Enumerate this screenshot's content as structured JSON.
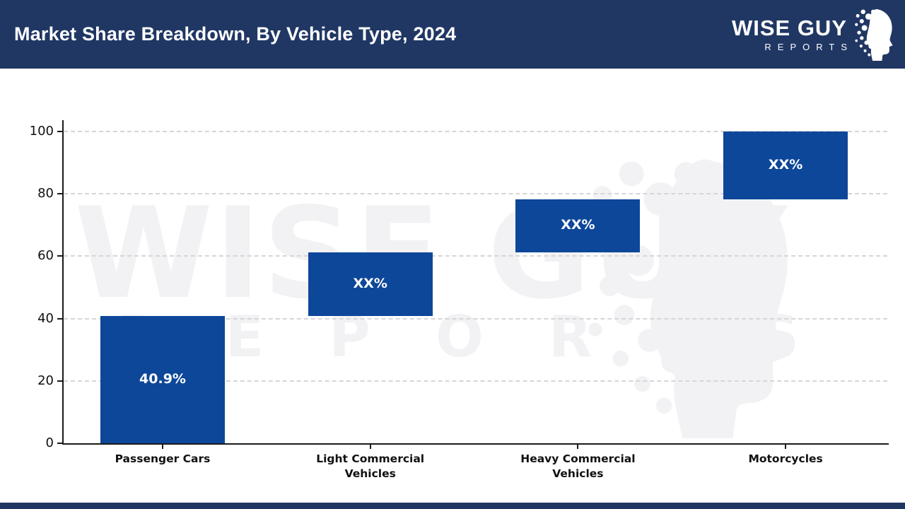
{
  "header": {
    "title": "Market Share Breakdown, By Vehicle Type, 2024",
    "logo": {
      "name_line": "WISE GUY",
      "sub_line": "REPORTS"
    }
  },
  "watermark": {
    "line1": "WISE GUY",
    "line2": "REPORTS"
  },
  "footer": {
    "present": true
  },
  "colors": {
    "header_bg": "#203764",
    "footer_bg": "#203764",
    "bar": "#0d4799",
    "grid": "#d6d6d9",
    "axis": "#1a1a1a",
    "bar_label_text": "#ffffff",
    "watermark": "#f2f2f4"
  },
  "chart_data": {
    "type": "bar",
    "subtype": "waterfall",
    "title": "Market Share Breakdown, By Vehicle Type, 2024",
    "categories": [
      "Passenger Cars",
      "Light Commercial Vehicles",
      "Heavy Commercial Vehicles",
      "Motorcycles"
    ],
    "segments": [
      {
        "category": "Passenger Cars",
        "start": 0,
        "end": 40.9,
        "value_label": "40.9%"
      },
      {
        "category": "Light Commercial Vehicles",
        "start": 40.9,
        "end": 61.3,
        "value_label": "XX%"
      },
      {
        "category": "Heavy Commercial Vehicles",
        "start": 61.3,
        "end": 78.2,
        "value_label": "XX%"
      },
      {
        "category": "Motorcycles",
        "start": 78.2,
        "end": 100,
        "value_label": "XX%"
      }
    ],
    "xlabel": "",
    "ylabel": "",
    "ylim": [
      0,
      100
    ],
    "yticks": [
      0,
      20,
      40,
      60,
      80,
      100
    ],
    "grid": "horizontal-dashed",
    "legend": "none"
  }
}
